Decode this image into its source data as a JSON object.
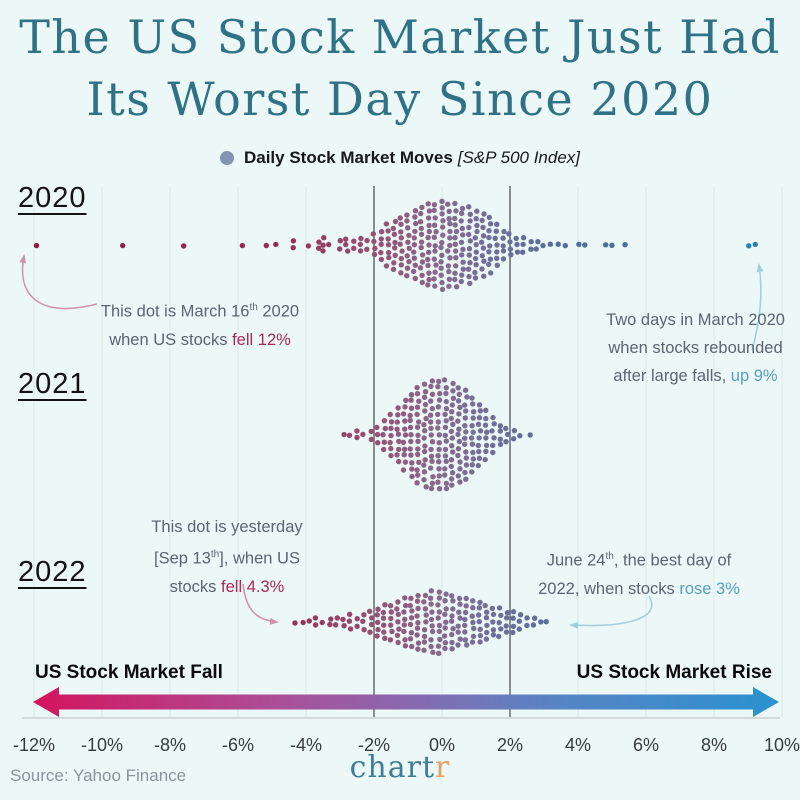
{
  "palette": {
    "background": "#ecf7f7",
    "title": "#2f7186",
    "fall_highlight": "#a82a55",
    "rise_highlight": "#57a0ba",
    "annotation_text": "#5b6572",
    "legend_dot": "#8494b3",
    "logo_teal": "#3e7e96",
    "logo_orange": "#e3a265",
    "pink_arrow": "#cf93ad",
    "blue_arrow": "#a5cedd"
  },
  "title": {
    "line1": "The US Stock Market Just Had",
    "line2": "Its Worst Day Since 2020"
  },
  "legend": {
    "label": "Daily Stock Market Moves",
    "sublabel": "[S&P 500 Index]"
  },
  "annotations": [
    {
      "name": "annotation-march-16-2020",
      "arrow_color": "#cf93ad",
      "lines": [
        [
          {
            "t": "This dot is March 16"
          },
          {
            "t": "th",
            "sup": true
          },
          {
            "t": " 2020"
          }
        ],
        [
          {
            "t": "when US stocks "
          },
          {
            "t": "fell 12%",
            "cls": "hl-fall"
          }
        ]
      ]
    },
    {
      "name": "annotation-march-2020-rebound",
      "arrow_color": "#a5cedd",
      "lines": [
        [
          {
            "t": "Two days in March 2020"
          }
        ],
        [
          {
            "t": "when stocks rebounded"
          }
        ],
        [
          {
            "t": "after large falls, "
          },
          {
            "t": "up 9%",
            "cls": "hl-rise"
          }
        ]
      ]
    },
    {
      "name": "annotation-sep-13-2022",
      "arrow_color": "#cf93ad",
      "lines": [
        [
          {
            "t": "This dot is yesterday"
          }
        ],
        [
          {
            "t": "[Sep 13"
          },
          {
            "t": "th",
            "sup": true
          },
          {
            "t": "], when US"
          }
        ],
        [
          {
            "t": "stocks "
          },
          {
            "t": "fell 4.3%",
            "cls": "hl-fall"
          }
        ]
      ]
    },
    {
      "name": "annotation-june-24-2022",
      "arrow_color": "#a5cedd",
      "lines": [
        [
          {
            "t": "June 24"
          },
          {
            "t": "th",
            "sup": true
          },
          {
            "t": ", the best day of"
          }
        ],
        [
          {
            "t": "2022, when stocks "
          },
          {
            "t": "rose 3%",
            "cls": "hl-rise"
          }
        ]
      ]
    }
  ],
  "footer": {
    "fall_label": "US Stock Market Fall",
    "rise_label": "US Stock Market Rise",
    "source": "Source: Yahoo Finance",
    "logo_text": "chart",
    "logo_accent": "r"
  },
  "chart_data": {
    "type": "beeswarm",
    "title": "Daily Stock Market Moves [S&P 500 Index]",
    "unit": "% daily change of S&P 500",
    "x_axis": {
      "min": -12,
      "max": 10,
      "ticks": [
        "-12%",
        "-10%",
        "-8%",
        "-6%",
        "-4%",
        "-2%",
        "0%",
        "2%",
        "4%",
        "6%",
        "8%",
        "10%"
      ],
      "tick_values": [
        -12,
        -10,
        -8,
        -6,
        -4,
        -2,
        0,
        2,
        4,
        6,
        8,
        10
      ]
    },
    "reference_lines": [
      -2,
      2
    ],
    "grid": true,
    "grid_color": "#dbe8ea",
    "reference_color": "#5c6065",
    "dot_radius": 2.7,
    "dot_spacing": 6.8,
    "dot_color_ramp": [
      [
        -12,
        [
          140,
          27,
          62
        ]
      ],
      [
        -5,
        [
          150,
          44,
          84
        ]
      ],
      [
        -2.5,
        [
          151,
          73,
          109
        ]
      ],
      [
        -1,
        [
          144,
          94,
          129
        ]
      ],
      [
        0,
        [
          135,
          106,
          142
        ]
      ],
      [
        1,
        [
          119,
          110,
          150
        ]
      ],
      [
        2,
        [
          103,
          112,
          152
        ]
      ],
      [
        3.5,
        [
          87,
          108,
          155
        ]
      ],
      [
        5.5,
        [
          70,
          112,
          160
        ]
      ],
      [
        8,
        [
          44,
          130,
          172
        ]
      ],
      [
        10,
        [
          30,
          134,
          177
        ]
      ]
    ],
    "flow_arrow": {
      "stops": [
        [
          0,
          "#d4145e"
        ],
        [
          0.33,
          "#ab4f98"
        ],
        [
          0.5,
          "#8a68ae"
        ],
        [
          0.68,
          "#5b82c2"
        ],
        [
          1,
          "#2a92d0"
        ]
      ]
    },
    "series": [
      {
        "year": "2020",
        "row_y": 245,
        "bins": [
          [
            -11.9,
            1
          ],
          [
            -9.4,
            1
          ],
          [
            -7.6,
            1
          ],
          [
            -5.9,
            1
          ],
          [
            -5.2,
            1
          ],
          [
            -4.9,
            1
          ],
          [
            -4.4,
            2
          ],
          [
            -3.9,
            1
          ],
          [
            -3.6,
            2
          ],
          [
            -3.5,
            3
          ],
          [
            -3.3,
            1
          ],
          [
            -3.0,
            2
          ],
          [
            -2.8,
            3
          ],
          [
            -2.6,
            2
          ],
          [
            -2.4,
            3
          ],
          [
            -2.2,
            2
          ],
          [
            -2.0,
            4
          ],
          [
            -1.8,
            5
          ],
          [
            -1.6,
            7
          ],
          [
            -1.4,
            8
          ],
          [
            -1.2,
            9
          ],
          [
            -1.0,
            10
          ],
          [
            -0.8,
            11
          ],
          [
            -0.6,
            12
          ],
          [
            -0.4,
            13
          ],
          [
            -0.2,
            13
          ],
          [
            0,
            14
          ],
          [
            0.2,
            13
          ],
          [
            0.4,
            13
          ],
          [
            0.6,
            12
          ],
          [
            0.8,
            12
          ],
          [
            1.0,
            11
          ],
          [
            1.2,
            10
          ],
          [
            1.4,
            9
          ],
          [
            1.6,
            7
          ],
          [
            1.8,
            5
          ],
          [
            2.0,
            4
          ],
          [
            2.2,
            3
          ],
          [
            2.4,
            3
          ],
          [
            2.6,
            2
          ],
          [
            2.8,
            2
          ],
          [
            3.0,
            1
          ],
          [
            3.2,
            1
          ],
          [
            3.4,
            1
          ],
          [
            3.6,
            1
          ],
          [
            4.0,
            1
          ],
          [
            4.2,
            1
          ],
          [
            4.8,
            1
          ],
          [
            5.0,
            1
          ],
          [
            5.4,
            1
          ],
          [
            9.0,
            1
          ],
          [
            9.2,
            1
          ]
        ]
      },
      {
        "year": "2021",
        "row_y": 435,
        "bins": [
          [
            -2.9,
            1
          ],
          [
            -2.7,
            1
          ],
          [
            -2.5,
            2
          ],
          [
            -2.3,
            1
          ],
          [
            -2.1,
            2
          ],
          [
            -1.9,
            3
          ],
          [
            -1.7,
            5
          ],
          [
            -1.5,
            7
          ],
          [
            -1.3,
            9
          ],
          [
            -1.1,
            11
          ],
          [
            -0.9,
            13
          ],
          [
            -0.7,
            15
          ],
          [
            -0.5,
            16
          ],
          [
            -0.3,
            17
          ],
          [
            -0.1,
            17
          ],
          [
            0.1,
            17
          ],
          [
            0.3,
            16
          ],
          [
            0.5,
            15
          ],
          [
            0.7,
            14
          ],
          [
            0.9,
            12
          ],
          [
            1.1,
            10
          ],
          [
            1.3,
            8
          ],
          [
            1.5,
            6
          ],
          [
            1.7,
            4
          ],
          [
            1.9,
            3
          ],
          [
            2.1,
            2
          ],
          [
            2.3,
            1
          ],
          [
            2.6,
            1
          ]
        ]
      },
      {
        "year": "2022",
        "row_y": 622,
        "bins": [
          [
            -4.3,
            1
          ],
          [
            -4.1,
            1
          ],
          [
            -3.9,
            1
          ],
          [
            -3.7,
            2
          ],
          [
            -3.5,
            1
          ],
          [
            -3.3,
            2
          ],
          [
            -3.1,
            2
          ],
          [
            -2.9,
            2
          ],
          [
            -2.7,
            3
          ],
          [
            -2.5,
            2
          ],
          [
            -2.3,
            3
          ],
          [
            -2.1,
            4
          ],
          [
            -1.9,
            5
          ],
          [
            -1.7,
            6
          ],
          [
            -1.5,
            6
          ],
          [
            -1.3,
            7
          ],
          [
            -1.1,
            8
          ],
          [
            -0.9,
            8
          ],
          [
            -0.7,
            9
          ],
          [
            -0.5,
            9
          ],
          [
            -0.3,
            10
          ],
          [
            -0.1,
            10
          ],
          [
            0.1,
            9
          ],
          [
            0.3,
            9
          ],
          [
            0.5,
            8
          ],
          [
            0.7,
            8
          ],
          [
            0.9,
            7
          ],
          [
            1.1,
            7
          ],
          [
            1.3,
            6
          ],
          [
            1.5,
            5
          ],
          [
            1.7,
            5
          ],
          [
            1.9,
            4
          ],
          [
            2.1,
            4
          ],
          [
            2.3,
            3
          ],
          [
            2.5,
            2
          ],
          [
            2.7,
            2
          ],
          [
            2.9,
            1
          ],
          [
            3.1,
            1
          ]
        ]
      }
    ],
    "highlighted_points": [
      {
        "year": "2020",
        "value": -11.9,
        "label": "March 16th 2020, US stocks fell 12%"
      },
      {
        "year": "2020",
        "value": 9.0,
        "label": "March 2020 rebound day, up 9%"
      },
      {
        "year": "2020",
        "value": 9.2,
        "label": "March 2020 rebound day, up 9%"
      },
      {
        "year": "2022",
        "value": -4.3,
        "label": "Sep 13th 2022 (yesterday), fell 4.3%"
      },
      {
        "year": "2022",
        "value": 3.1,
        "label": "June 24th 2022, best day, rose 3%"
      }
    ]
  }
}
